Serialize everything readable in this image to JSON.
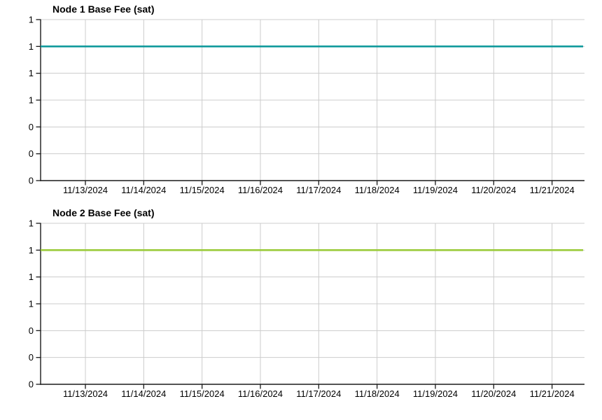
{
  "colors": {
    "background": "#ffffff",
    "gridline": "#cccccc",
    "axis": "#1a1a1a",
    "text": "#000000",
    "node1_line": "#109a9c",
    "node2_line": "#9bcb3b"
  },
  "chart_data": [
    {
      "type": "line",
      "title": "Node 1 Base Fee (sat)",
      "xlabel": "",
      "ylabel": "",
      "ylim": [
        0,
        1.2
      ],
      "grid": true,
      "legend_position": "none",
      "x_ticks": [
        "11/13/2024",
        "11/14/2024",
        "11/15/2024",
        "11/16/2024",
        "11/17/2024",
        "11/18/2024",
        "11/19/2024",
        "11/20/2024",
        "11/21/2024"
      ],
      "y_ticks": {
        "values": [
          1.2,
          1.0,
          0.8,
          0.6,
          0.4,
          0.2,
          0.0
        ],
        "labels": [
          "1",
          "1",
          "1",
          "1",
          "0",
          "0",
          "0"
        ]
      },
      "series": [
        {
          "name": "Node 1 Base Fee (sat)",
          "color": "#109a9c",
          "values": [
            1,
            1,
            1,
            1,
            1,
            1,
            1,
            1,
            1
          ]
        }
      ]
    },
    {
      "type": "line",
      "title": "Node 2 Base Fee (sat)",
      "xlabel": "",
      "ylabel": "",
      "ylim": [
        0,
        1.2
      ],
      "grid": true,
      "legend_position": "none",
      "x_ticks": [
        "11/13/2024",
        "11/14/2024",
        "11/15/2024",
        "11/16/2024",
        "11/17/2024",
        "11/18/2024",
        "11/19/2024",
        "11/20/2024",
        "11/21/2024"
      ],
      "y_ticks": {
        "values": [
          1.2,
          1.0,
          0.8,
          0.6,
          0.4,
          0.2,
          0.0
        ],
        "labels": [
          "1",
          "1",
          "1",
          "1",
          "0",
          "0",
          "0"
        ]
      },
      "series": [
        {
          "name": "Node 2 Base Fee (sat)",
          "color": "#9bcb3b",
          "values": [
            1,
            1,
            1,
            1,
            1,
            1,
            1,
            1,
            1
          ]
        }
      ]
    }
  ]
}
